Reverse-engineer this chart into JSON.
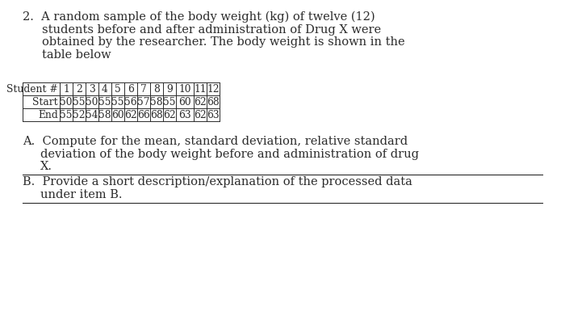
{
  "background_color": "#ffffff",
  "text_color": "#2b2b2b",
  "main_text_line1": "2.  A random sample of the body weight (kg) of twelve (12)",
  "main_text_line2": "students before and after administration of Drug X were",
  "main_text_line3": "obtained by the researcher. The body weight is shown in the",
  "main_text_line4": "table below",
  "student_numbers": [
    "Student #",
    "1",
    "2",
    "3",
    "4",
    "5",
    "6",
    "7",
    "8",
    "9",
    "10",
    "11",
    "12"
  ],
  "start_values": [
    "Start",
    "50",
    "55",
    "50",
    "55",
    "55",
    "56",
    "57",
    "58",
    "55",
    "60",
    "62",
    "68"
  ],
  "end_values": [
    "End",
    "55",
    "52",
    "54",
    "58",
    "60",
    "62",
    "66",
    "68",
    "62",
    "63",
    "62",
    "63"
  ],
  "item_A_line1": "A.  Compute for the mean, standard deviation, relative standard",
  "item_A_line2": "deviation of the body weight before and administration of drug",
  "item_A_line3": "X.",
  "item_B_line1": "B.  Provide a short description/explanation of the processed data",
  "item_B_line2": "under item B.",
  "font_size_main": 10.5,
  "font_size_table": 8.8,
  "font_family": "DejaVu Serif",
  "fig_width": 7.0,
  "fig_height": 3.91,
  "dpi": 100
}
